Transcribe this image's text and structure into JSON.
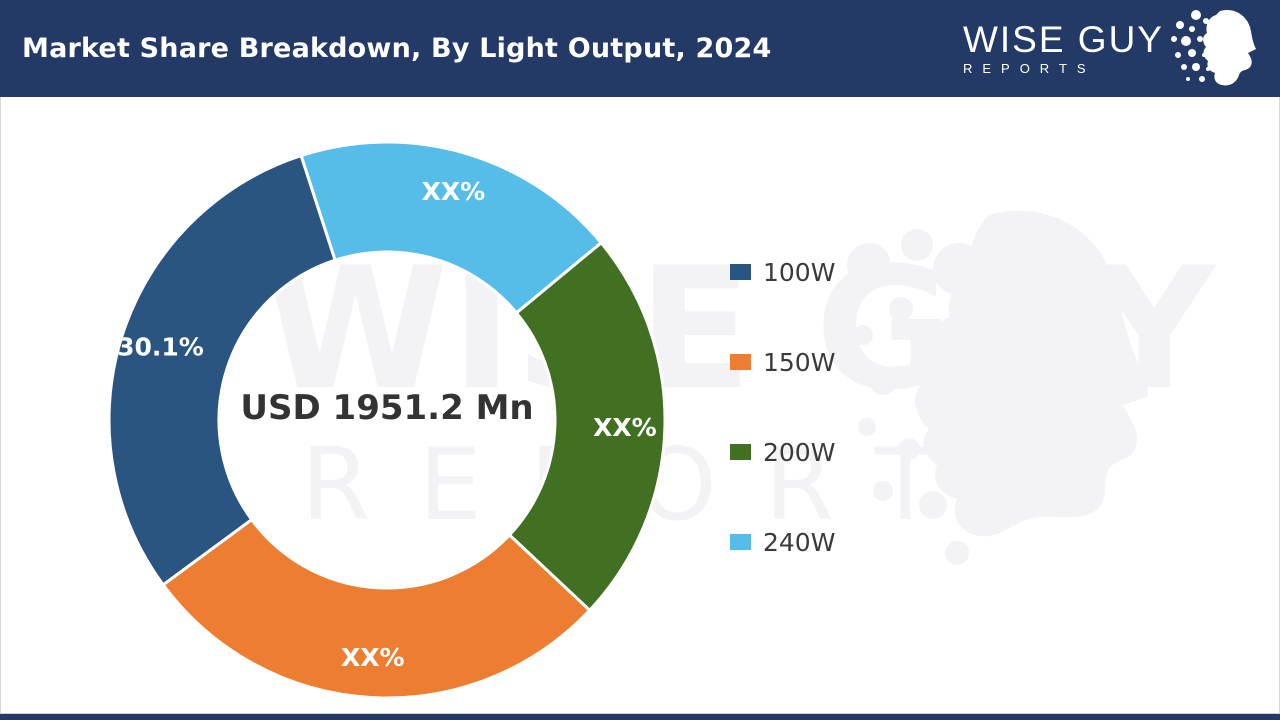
{
  "header": {
    "title": "Market Share Breakdown, By Light Output, 2024",
    "logo": {
      "line1": "WISE GUY",
      "line2": "REPORTS"
    }
  },
  "watermark": {
    "line1": "WISE GUY",
    "line2": "REPORTS"
  },
  "chart_data": {
    "type": "pie",
    "subtype": "donut",
    "title": "Market Share Breakdown, By Light Output, 2024",
    "center_label": "USD 1951.2 Mn",
    "start_angle_deg": -18,
    "legend_position": "right",
    "segments": [
      {
        "label": "240W",
        "value_pct": 19.0,
        "display_label": "XX%",
        "color": "#56BDE8"
      },
      {
        "label": "200W",
        "value_pct": 23.0,
        "display_label": "XX%",
        "color": "#417022"
      },
      {
        "label": "150W",
        "value_pct": 27.9,
        "display_label": "XX%",
        "color": "#ED7D31"
      },
      {
        "label": "100W",
        "value_pct": 30.1,
        "display_label": "30.1%",
        "color": "#2A5580"
      }
    ],
    "legend": [
      {
        "label": "100W",
        "color": "#2A5580"
      },
      {
        "label": "150W",
        "color": "#ED7D31"
      },
      {
        "label": "200W",
        "color": "#417022"
      },
      {
        "label": "240W",
        "color": "#56BDE8"
      }
    ]
  },
  "colors": {
    "header_bg": "#233A66",
    "footer_bg": "#233A66",
    "watermark": "#f3f3f6",
    "center_text": "#333333",
    "legend_text": "#3a3a3a"
  }
}
